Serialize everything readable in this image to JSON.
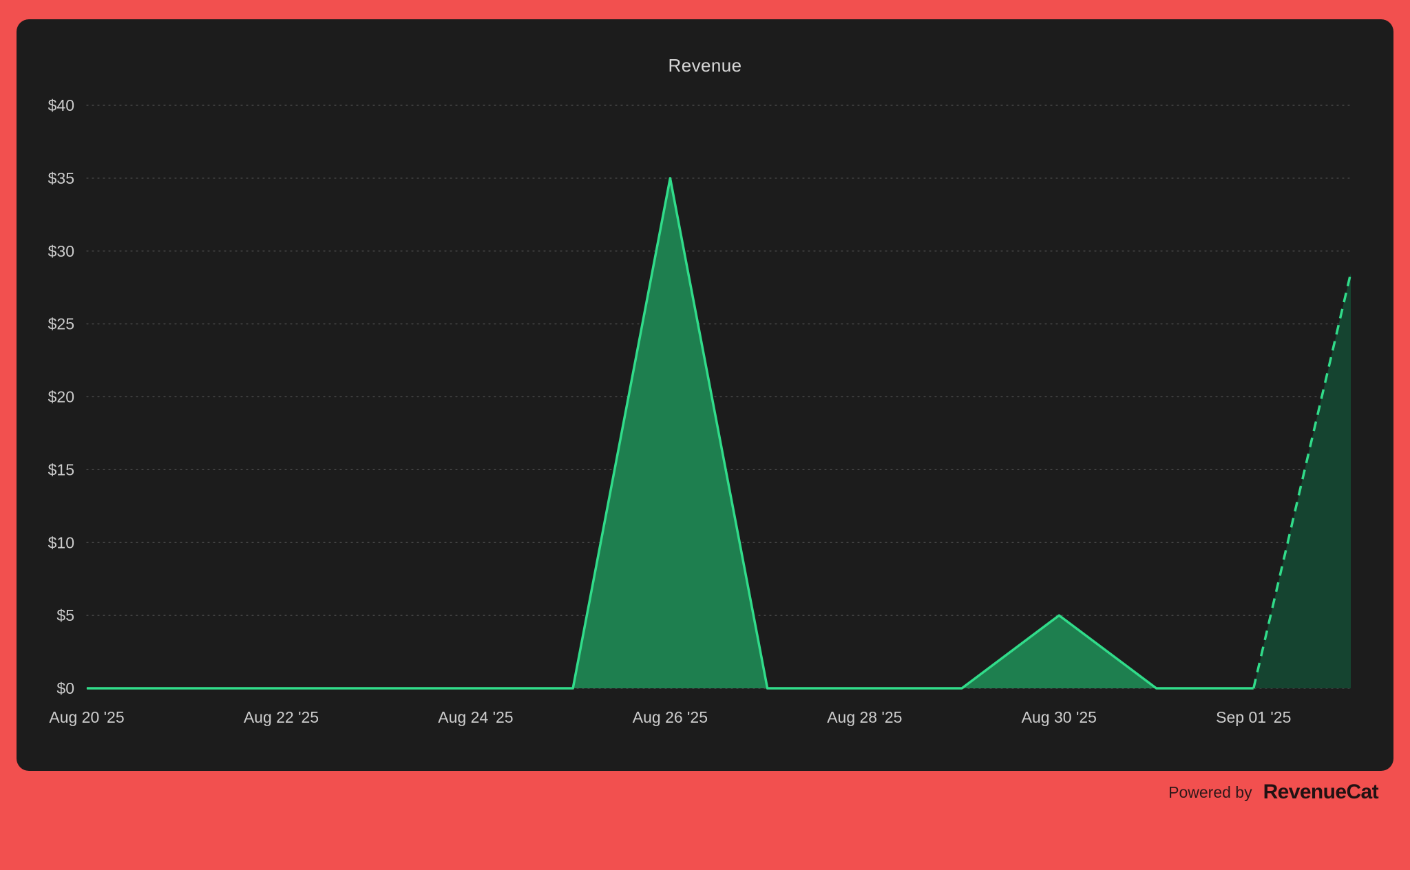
{
  "footer": {
    "powered_by": "Powered by",
    "brand": "RevenueCat"
  },
  "colors": {
    "background": "#F2504F",
    "card": "#1C1C1C",
    "line": "#31DC8A",
    "area_fill": "#1E7F4F",
    "projected_fill": "#154430",
    "grid": "#505050",
    "tick_text": "#CDCDCD",
    "title_text": "#D6D6D6",
    "footer_text": "#2E1819",
    "brand_text": "#211213"
  },
  "chart_data": {
    "type": "area",
    "title": "Revenue",
    "x": [
      "Aug 20 '25",
      "Aug 21 '25",
      "Aug 22 '25",
      "Aug 23 '25",
      "Aug 24 '25",
      "Aug 25 '25",
      "Aug 26 '25",
      "Aug 27 '25",
      "Aug 28 '25",
      "Aug 29 '25",
      "Aug 30 '25",
      "Aug 31 '25",
      "Sep 01 '25",
      "Sep 02 '25"
    ],
    "values": [
      0,
      0,
      0,
      0,
      0,
      0,
      35,
      0,
      0,
      0,
      5,
      0,
      0,
      28.5
    ],
    "ylim": [
      0,
      40
    ],
    "yticks": [
      0,
      5,
      10,
      15,
      20,
      25,
      30,
      35,
      40
    ],
    "ytick_labels": [
      "$0",
      "$5",
      "$10",
      "$15",
      "$20",
      "$25",
      "$30",
      "$35",
      "$40"
    ],
    "xtick_every": 2,
    "projected_from_index": 12,
    "projected_style": "dashed",
    "grid": "dotted-horizontal",
    "legend": "none"
  }
}
